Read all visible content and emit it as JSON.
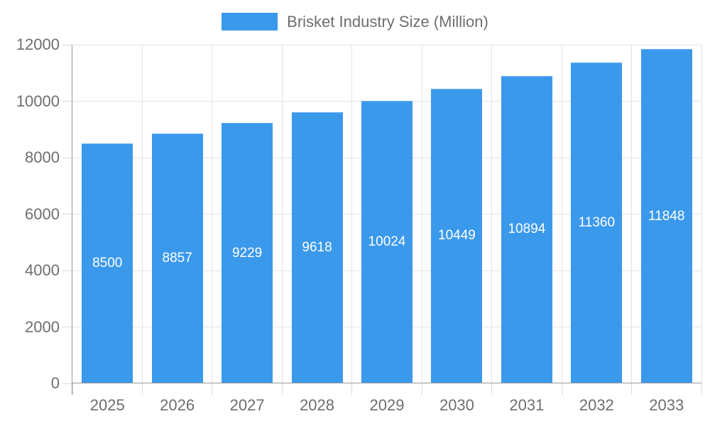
{
  "chart_data": {
    "type": "bar",
    "title": "",
    "categories": [
      "2025",
      "2026",
      "2027",
      "2028",
      "2029",
      "2030",
      "2031",
      "2032",
      "2033"
    ],
    "series": [
      {
        "name": "Brisket Industry Size (Million)",
        "values": [
          8500,
          8857,
          9229,
          9618,
          10024,
          10449,
          10894,
          11360,
          11848
        ]
      }
    ],
    "bar_value_labels": [
      "8500",
      "8857",
      "9229",
      "9618",
      "10024",
      "10449",
      "10894",
      "11360",
      "11848"
    ],
    "value_label_position": "inside-center",
    "xlabel": "",
    "ylabel": "",
    "ylim": [
      0,
      12000
    ],
    "yticks": [
      0,
      2000,
      4000,
      6000,
      8000,
      10000,
      12000
    ],
    "grid": true,
    "legend": {
      "position": "top",
      "label": "Brisket Industry Size (Million)"
    },
    "colors": {
      "bar_fill": "#3B99EC",
      "bar_edge": "#6FB3F3",
      "value_label_text": "#FFFFFF",
      "axis_text": "#6E6E6E",
      "legend_text": "#6E6E6E",
      "axis_line": "#999999",
      "gridline": "#E3E3E3",
      "tick": "#D9D9D9",
      "background": "#FFFFFF"
    }
  }
}
